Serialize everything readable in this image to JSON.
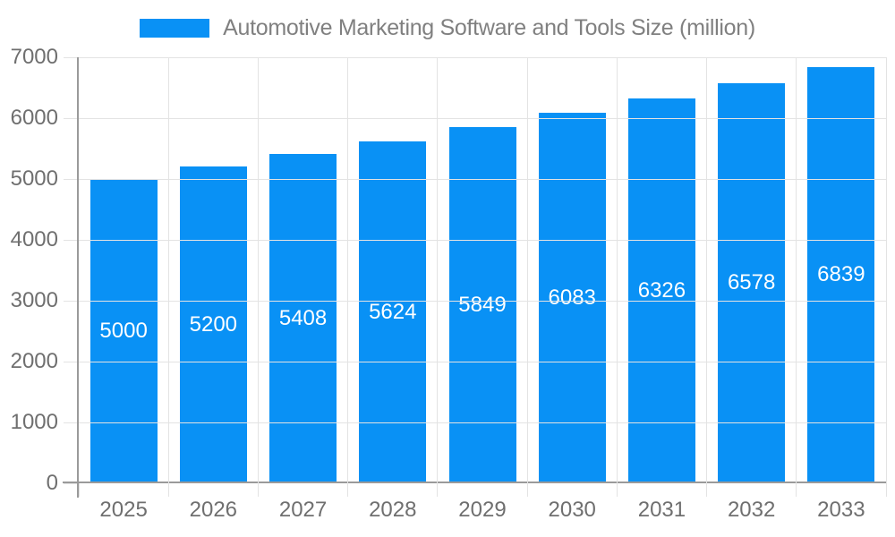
{
  "legend": {
    "label": "Automotive Marketing Software and Tools Size (million)"
  },
  "chart_data": {
    "type": "bar",
    "title": "Automotive Marketing Software and Tools Size (million)",
    "categories": [
      "2025",
      "2026",
      "2027",
      "2028",
      "2029",
      "2030",
      "2031",
      "2032",
      "2033"
    ],
    "values": [
      5000,
      5200,
      5408,
      5624,
      5849,
      6083,
      6326,
      6578,
      6839
    ],
    "xlabel": "",
    "ylabel": "",
    "ylim": [
      0,
      7000
    ],
    "yticks": [
      0,
      1000,
      2000,
      3000,
      4000,
      5000,
      6000,
      7000
    ],
    "grid": true,
    "legend_position": "top",
    "value_label_position": "inside-center"
  },
  "colors": {
    "bar": "#0991f5",
    "grid": "#e3e3e3",
    "axis": "#9a9a9a",
    "tick_label": "#6f6f6f",
    "title": "#808080",
    "value_label": "#ffffff",
    "background": "#ffffff"
  }
}
